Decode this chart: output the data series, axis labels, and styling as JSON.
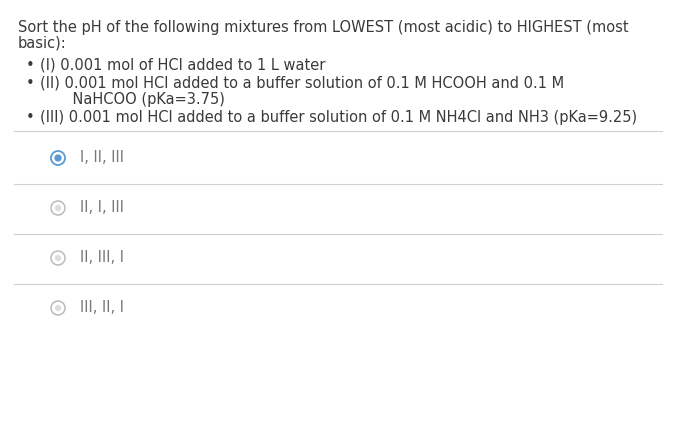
{
  "background_color": "#ffffff",
  "title_line1": "Sort the pH of the following mixtures from LOWEST (most acidic) to HIGHEST (most",
  "title_line2": "basic):",
  "bullet1": "(I) 0.001 mol of HCl added to 1 L water",
  "bullet2a": "(II) 0.001 mol HCl added to a buffer solution of 0.1 M HCOOH and 0.1 M",
  "bullet2b": "    NaHCOO (pKa=3.75)",
  "bullet3": "(III) 0.001 mol HCl added to a buffer solution of 0.1 M NH4Cl and NH3 (pKa=9.25)",
  "options": [
    {
      "label": "I, II, III",
      "selected": true
    },
    {
      "label": "II, I, III",
      "selected": false
    },
    {
      "label": "II, III, I",
      "selected": false
    },
    {
      "label": "III, II, I",
      "selected": false
    }
  ],
  "font_size": 10.5,
  "text_color": "#3a3a3a",
  "option_text_color": "#777777",
  "divider_color": "#d0d0d0",
  "selected_dot_color": "#5b9bd5",
  "selected_ring_color": "#5b9bd5",
  "unselected_ring_color": "#bbbbbb",
  "unselected_dot_color": "#dddddd"
}
